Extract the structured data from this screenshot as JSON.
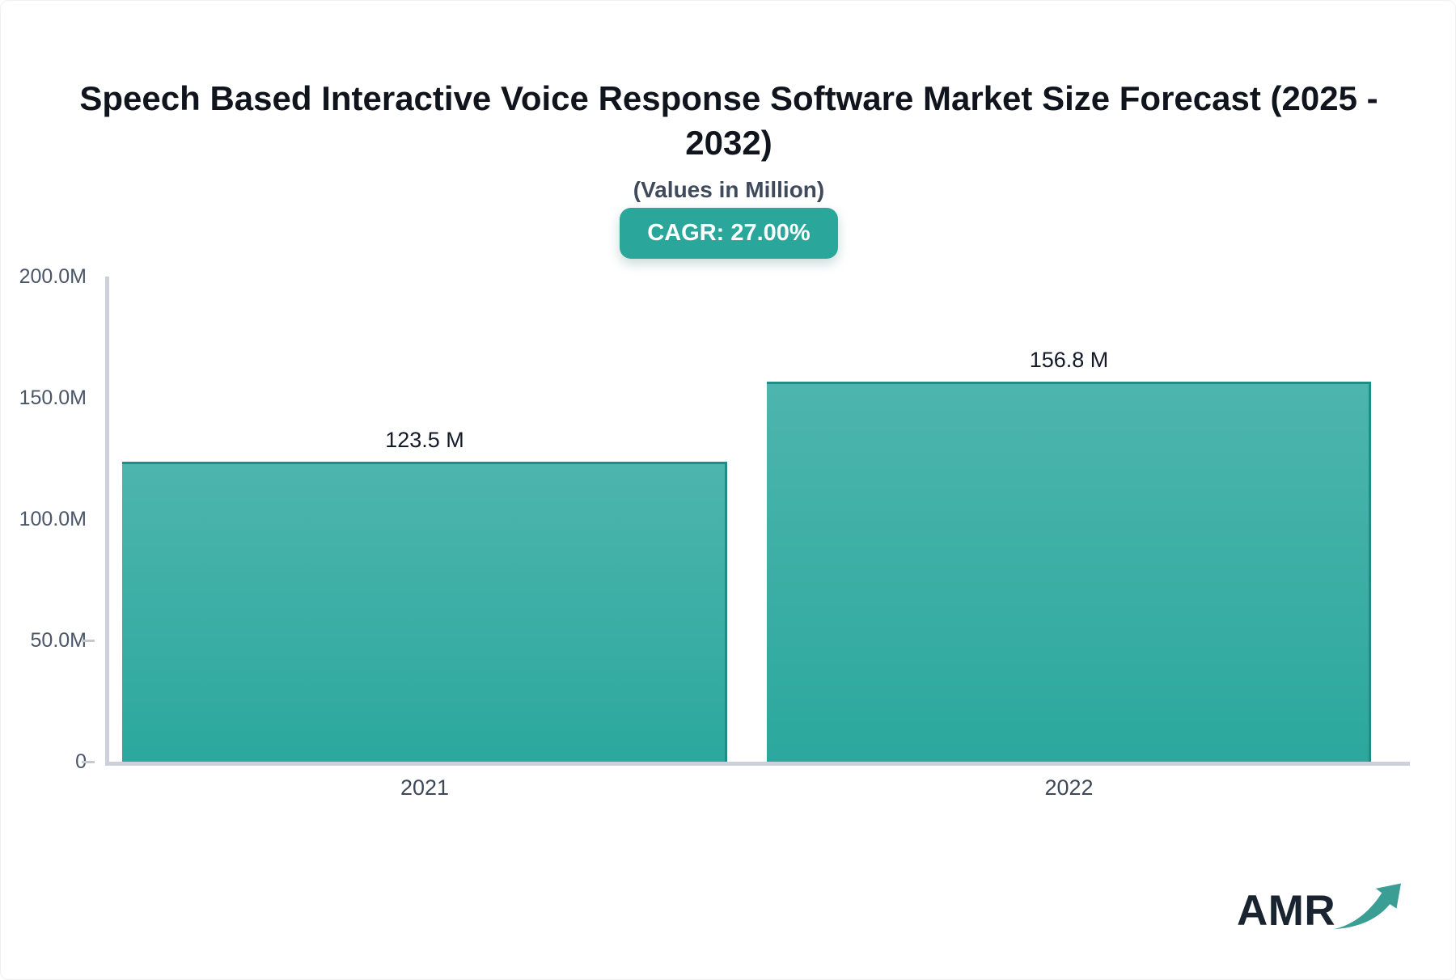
{
  "chart_data": {
    "type": "bar",
    "title": "Speech Based Interactive Voice Response Software Market Size Forecast (2025 - 2032)",
    "subtitle": "(Values in Million)",
    "cagr_label": "CAGR: 27.00%",
    "categories": [
      "2021",
      "2022"
    ],
    "values": [
      123.5,
      156.8
    ],
    "value_labels": [
      "123.5 M",
      "156.8 M"
    ],
    "unit": "Million",
    "ylim": [
      0,
      200
    ],
    "yticks": [
      {
        "value": 200,
        "label": "200.0M",
        "tick_mark": false
      },
      {
        "value": 150,
        "label": "150.0M",
        "tick_mark": false
      },
      {
        "value": 100,
        "label": "100.0M",
        "tick_mark": false
      },
      {
        "value": 50,
        "label": "50.0M",
        "tick_mark": true
      },
      {
        "value": 0,
        "label": "0",
        "tick_mark": true
      }
    ],
    "legend": "none",
    "grid": "off"
  },
  "logo": {
    "text": "AMR"
  },
  "colors": {
    "title_text": "#10151d",
    "subtitle_text": "#3f4a5c",
    "badge_bg": "#2ba69b",
    "badge_text": "#ffffff",
    "bar_top": "#4db5ad",
    "bar_bottom": "#2ba89d",
    "bar_edge": "#1e8c87",
    "axis_line": "#ccd0da",
    "tick_mark": "#c5c9d2",
    "y_label": "#4b5668",
    "x_label": "#3d4858",
    "value_label": "#131a28",
    "logo_text": "#1a2430",
    "logo_arrow": "#3a9e94"
  }
}
